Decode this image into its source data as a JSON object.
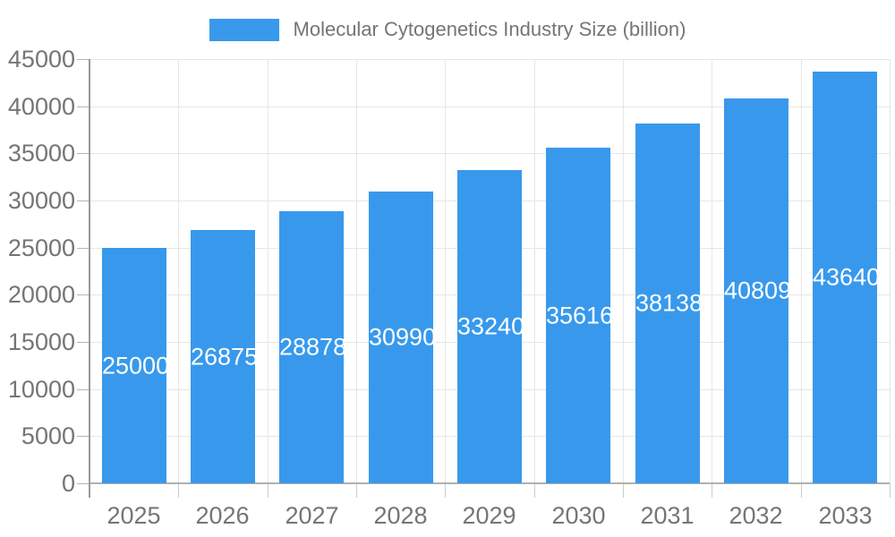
{
  "chart_data": {
    "type": "bar",
    "title": "Molecular Cytogenetics Industry Size (billion)",
    "xlabel": "",
    "ylabel": "",
    "categories": [
      "2025",
      "2026",
      "2027",
      "2028",
      "2029",
      "2030",
      "2031",
      "2032",
      "2033"
    ],
    "series": [
      {
        "name": "Molecular Cytogenetics Industry Size (billion)",
        "values": [
          25000,
          26875,
          28878,
          30990,
          33240,
          35616,
          38138,
          40809,
          43640
        ],
        "color": "#3899ec"
      }
    ],
    "value_labels": [
      "25000",
      "26875",
      "28878",
      "30990",
      "33240",
      "35616",
      "38138",
      "40809",
      "43640"
    ],
    "ylim": [
      0,
      45000
    ],
    "yticks": [
      {
        "v": 0,
        "label": "0"
      },
      {
        "v": 5000,
        "label": "5000"
      },
      {
        "v": 10000,
        "label": "10000"
      },
      {
        "v": 15000,
        "label": "15000"
      },
      {
        "v": 20000,
        "label": "20000"
      },
      {
        "v": 25000,
        "label": "25000"
      },
      {
        "v": 30000,
        "label": "30000"
      },
      {
        "v": 35000,
        "label": "35000"
      },
      {
        "v": 40000,
        "label": "40000"
      },
      {
        "v": 45000,
        "label": "45000"
      }
    ],
    "grid": true,
    "legend_position": "top"
  },
  "colors": {
    "bar": "#3899ec",
    "axis_text": "#757575",
    "grid_line": "#e6e6e6",
    "axis_line": "#9a9a9a",
    "baseline": "#b0b0b0",
    "tick": "#b5b5b5",
    "below_axis_tick": "#cccccc",
    "value_label": "#ffffff",
    "background": "#ffffff"
  }
}
